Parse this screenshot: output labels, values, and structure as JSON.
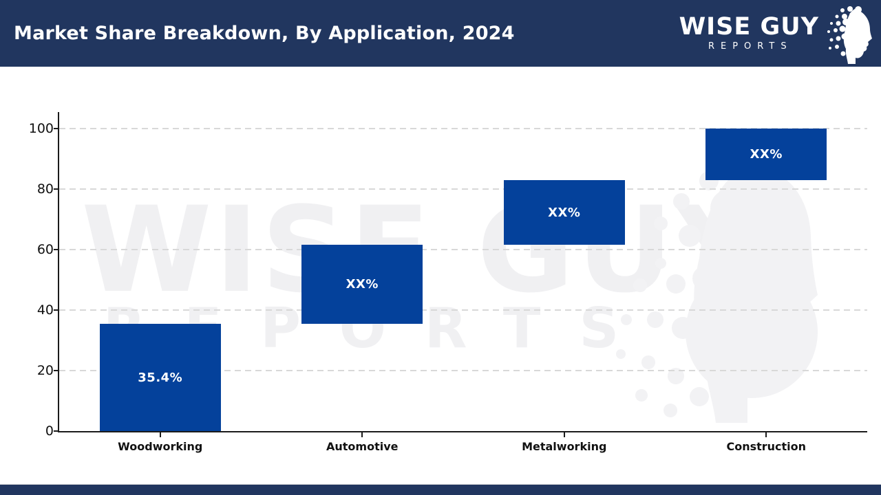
{
  "header": {
    "title": "Market Share Breakdown, By Application, 2024",
    "bg_color": "#21365f",
    "logo": {
      "line1": "WISE GUY",
      "line2": "REPORTS"
    }
  },
  "watermark": {
    "line1": "WISE GUY",
    "line2": "REPORTS"
  },
  "chart_data": {
    "type": "bar",
    "subtype": "waterfall-floating-bars",
    "title": "Market Share Breakdown, By Application, 2024",
    "categories": [
      "Woodworking",
      "Automotive",
      "Metalworking",
      "Construction"
    ],
    "segments": [
      {
        "category": "Woodworking",
        "base": 0,
        "top": 35.4,
        "label": "35.4%"
      },
      {
        "category": "Automotive",
        "base": 35.4,
        "top": 61.5,
        "label": "XX%"
      },
      {
        "category": "Metalworking",
        "base": 61.5,
        "top": 83,
        "label": "XX%"
      },
      {
        "category": "Construction",
        "base": 83,
        "top": 100,
        "label": "XX%"
      }
    ],
    "yticks": [
      0,
      20,
      40,
      60,
      80,
      100
    ],
    "ylim": [
      0,
      100
    ],
    "xlabel": "",
    "ylabel": "",
    "grid": "horizontal-dashed",
    "legend": "none",
    "bar_color": "#04419b",
    "bar_label_color": "#ffffff"
  },
  "footer": {
    "bg_color": "#21365f"
  }
}
